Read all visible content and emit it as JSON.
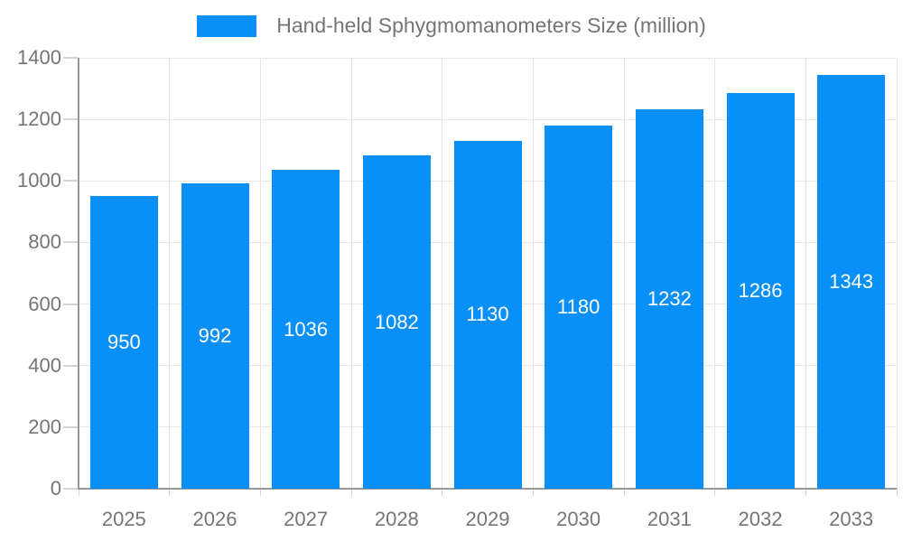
{
  "legend": {
    "label": "Hand-held Sphygmomanometers Size (million)"
  },
  "colors": {
    "bar": "#0890F8",
    "grid": "#e6e6e6",
    "axis": "#999999",
    "tick": "#d4d4d4",
    "text": "#757575",
    "bar_label": "#ffffff",
    "background": "#ffffff"
  },
  "chart_data": {
    "type": "bar",
    "title": "Hand-held Sphygmomanometers Size (million)",
    "categories": [
      "2025",
      "2026",
      "2027",
      "2028",
      "2029",
      "2030",
      "2031",
      "2032",
      "2033"
    ],
    "values": [
      950,
      992,
      1036,
      1082,
      1130,
      1180,
      1232,
      1286,
      1343
    ],
    "xlabel": "",
    "ylabel": "",
    "ylim": [
      0,
      1400
    ],
    "yticks": [
      0,
      200,
      400,
      600,
      800,
      1000,
      1200,
      1400
    ],
    "grid": true,
    "bar_labels": "inside-center",
    "legend_position": "top-center"
  }
}
